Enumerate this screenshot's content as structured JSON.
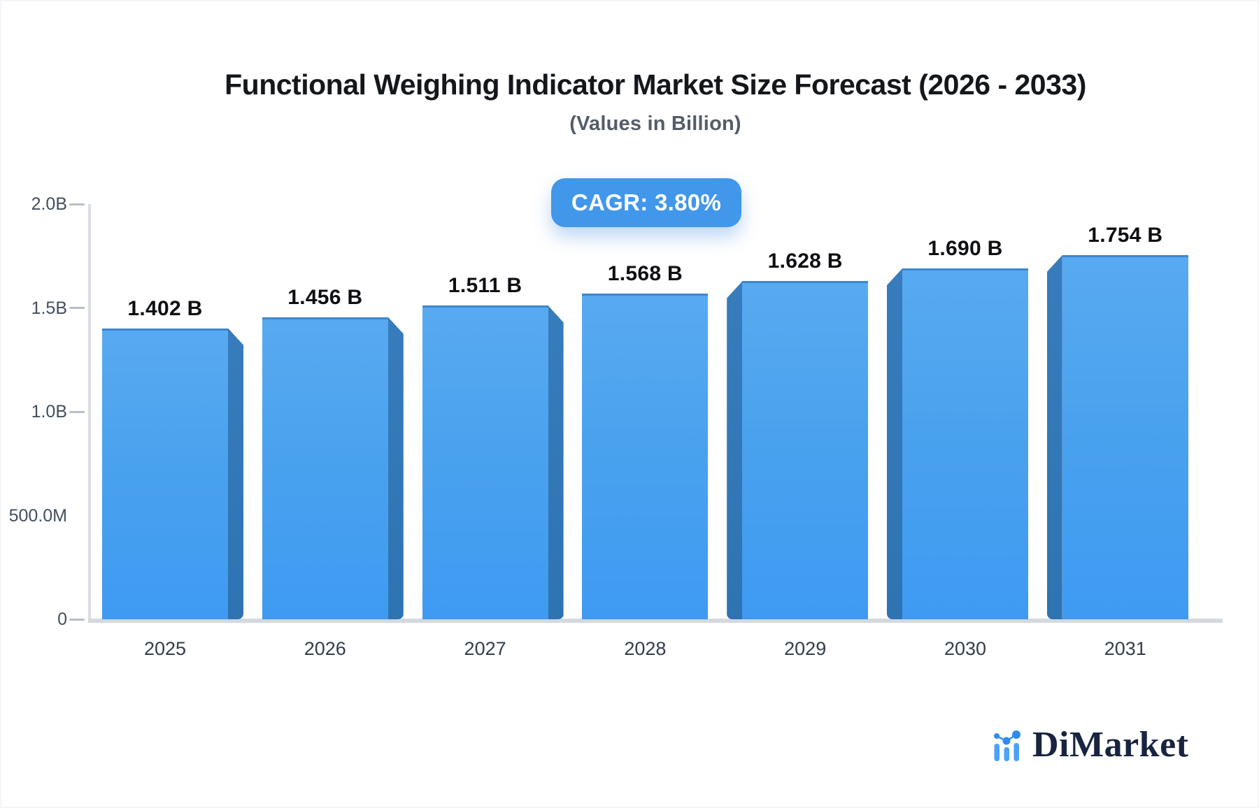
{
  "header": {
    "title": "Functional Weighing Indicator Market Size Forecast (2026 - 2033)",
    "subtitle": "(Values in Billion)"
  },
  "badge": {
    "label": "CAGR: 3.80%",
    "color": "#4197ea",
    "text_color": "#ffffff"
  },
  "brand": {
    "name": "DiMarket",
    "icon": "mini-bar-chart-logo-icon",
    "text_color": "#182440",
    "icon_color": "#4aa2f5"
  },
  "colors": {
    "bar_face": "#4aa2ee",
    "bar_side": "#2e73b2",
    "axis_line": "#d7dbe1",
    "tick_text": "#434e5d",
    "x_label_text": "#323d4b",
    "value_text": "#0d0f12"
  },
  "chart_data": {
    "type": "bar",
    "title": "Functional Weighing Indicator Market Size Forecast (2026 - 2033)",
    "subtitle": "(Values in Billion)",
    "xlabel": "",
    "ylabel": "",
    "unit": "Billion",
    "categories": [
      "2025",
      "2026",
      "2027",
      "2028",
      "2029",
      "2030",
      "2031"
    ],
    "values": [
      1.402,
      1.456,
      1.511,
      1.568,
      1.628,
      1.69,
      1.754
    ],
    "value_labels": [
      "1.402 B",
      "1.456 B",
      "1.511 B",
      "1.568 B",
      "1.628 B",
      "1.690 B",
      "1.754 B"
    ],
    "ylim": [
      0,
      2.0
    ],
    "y_ticks": [
      {
        "label": "2.0B",
        "value": 2.0,
        "dash": true
      },
      {
        "label": "1.5B",
        "value": 1.5,
        "dash": true
      },
      {
        "label": "1.0B",
        "value": 1.0,
        "dash": true
      },
      {
        "label": "500.0M",
        "value": 0.5,
        "dash": false
      },
      {
        "label": "0",
        "value": 0.0,
        "dash": true
      }
    ],
    "grid": false,
    "legend": false,
    "style": "3d-perspective-bars, side faces angle toward center bar"
  }
}
